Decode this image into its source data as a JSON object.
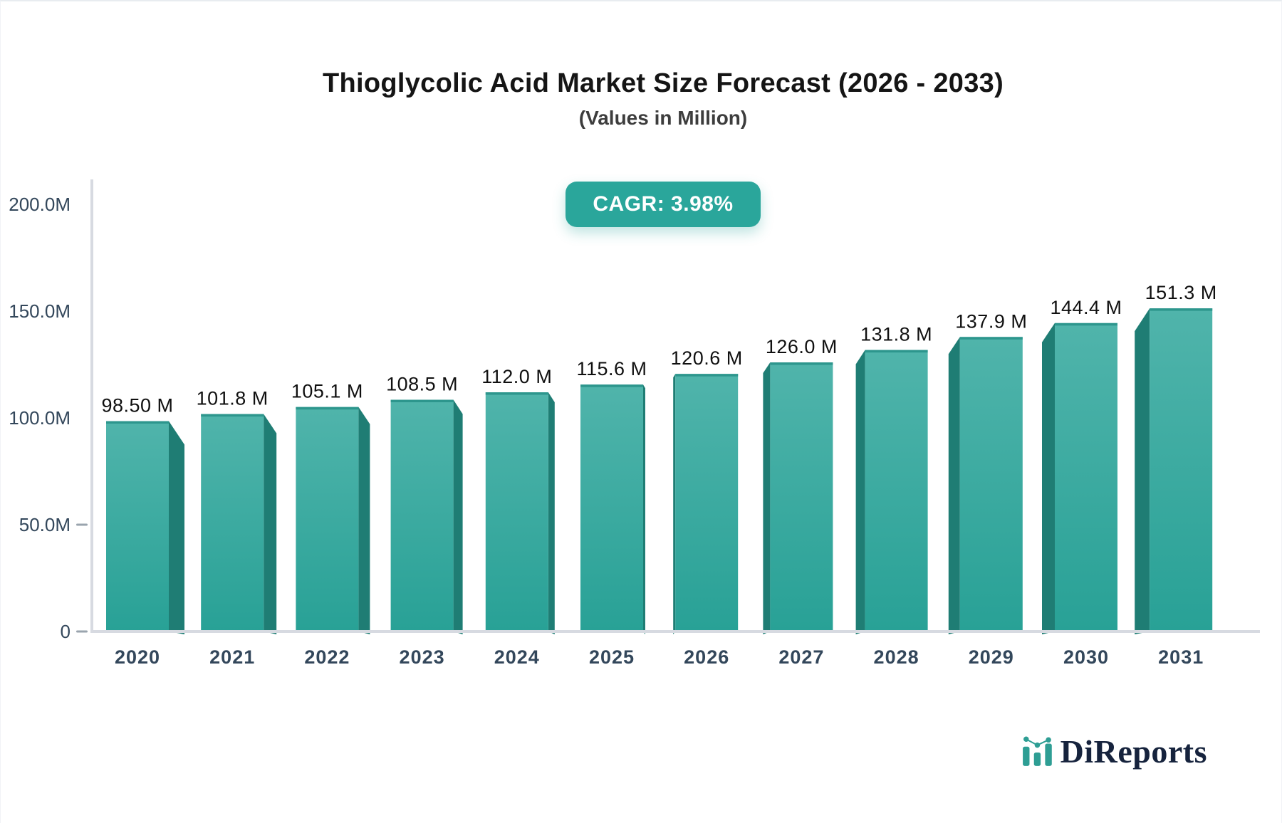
{
  "branding": {
    "logo_text": "DiReports",
    "logo_icon": "mini-bar-chart-sparkline-icon"
  },
  "colors": {
    "bar_front_top": "#50b4ab",
    "bar_front_bottom": "#28a196",
    "bar_side": "#1f7d74",
    "bar_top_edge": "#2d968d",
    "badge_bg": "#2aa69b",
    "axis_line": "#d7dae1",
    "tick_dash": "#9aa4ae",
    "axis_text": "#33475b",
    "value_text": "#101010",
    "title_text": "#151515",
    "subtitle_text": "#3d3d3d",
    "logo_text_color": "#16233d",
    "logo_icon_color": "#2e9e94",
    "background": "#ffffff"
  },
  "chart_data": {
    "type": "bar",
    "style": "3d-perspective-bars",
    "title": "Thioglycolic Acid Market Size Forecast (2026 - 2033)",
    "subtitle": "(Values in Million)",
    "annotation": "CAGR: 3.98%",
    "unit": "Million",
    "categories": [
      "2020",
      "2021",
      "2022",
      "2023",
      "2024",
      "2025",
      "2026",
      "2027",
      "2028",
      "2029",
      "2030",
      "2031"
    ],
    "values": [
      98.5,
      101.8,
      105.1,
      108.5,
      112.0,
      115.6,
      120.6,
      126.0,
      131.8,
      137.9,
      144.4,
      151.3
    ],
    "value_labels": [
      "98.50 M",
      "101.8 M",
      "105.1 M",
      "108.5 M",
      "112.0 M",
      "115.6 M",
      "120.6 M",
      "126.0 M",
      "131.8 M",
      "137.9 M",
      "144.4 M",
      "151.3 M"
    ],
    "ylim": [
      0,
      200
    ],
    "yticks": [
      {
        "label": "0",
        "value": 0
      },
      {
        "label": "50.0M",
        "value": 50
      },
      {
        "label": "100.0M",
        "value": 100
      },
      {
        "label": "150.0M",
        "value": 150
      },
      {
        "label": "200.0M",
        "value": 200
      }
    ],
    "grid": false,
    "legend": false
  }
}
